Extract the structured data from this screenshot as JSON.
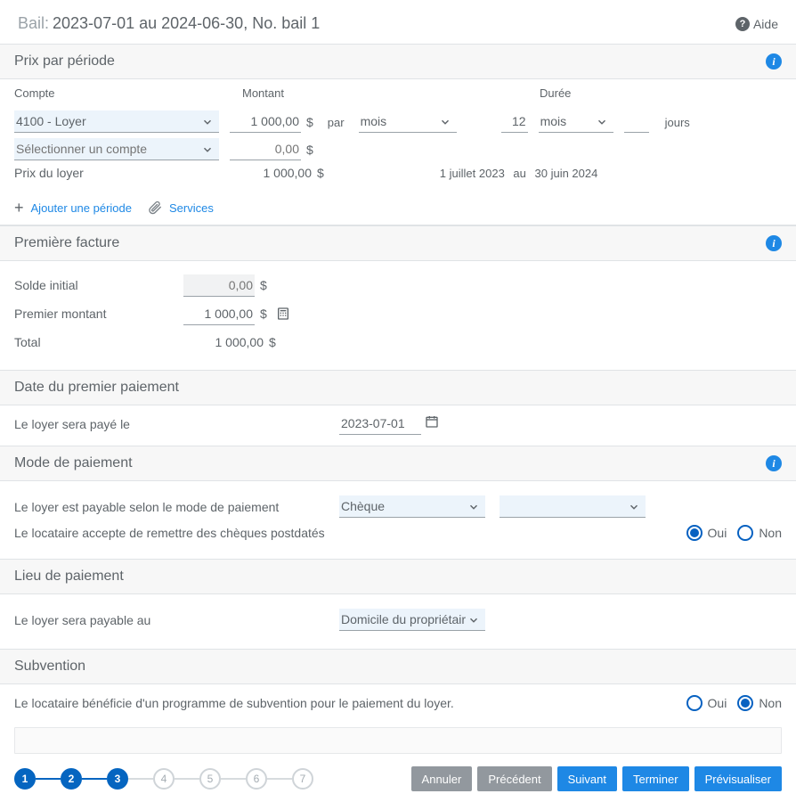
{
  "header": {
    "title_label": "Bail:",
    "title_value": "2023-07-01 au 2024-06-30, No. bail 1",
    "help_label": "Aide"
  },
  "prix": {
    "title": "Prix par période",
    "labels": {
      "compte": "Compte",
      "montant": "Montant",
      "duree": "Durée",
      "par": "par",
      "jours": "jours"
    },
    "account1": "4100 - Loyer",
    "amount1": "1 000,00",
    "unit": "mois",
    "duree_value": "12",
    "duree_unit": "mois",
    "account2_placeholder": "Sélectionner un compte",
    "amount2_placeholder": "0,00",
    "currency": "$",
    "summary_label": "Prix du loyer",
    "summary_amount": "1 000,00",
    "date_from": "1 juillet 2023",
    "date_sep": "au",
    "date_to": "30 juin 2024",
    "add_period": "Ajouter une période",
    "services": "Services"
  },
  "premiere": {
    "title": "Première facture",
    "solde_label": "Solde initial",
    "solde_placeholder": "0,00",
    "premier_label": "Premier montant",
    "premier_value": "1 000,00",
    "total_label": "Total",
    "total_value": "1 000,00",
    "currency": "$"
  },
  "date_premier": {
    "title": "Date du premier paiement",
    "label": "Le loyer sera payé le",
    "value": "2023-07-01"
  },
  "mode": {
    "title": "Mode de paiement",
    "label1": "Le loyer est payable selon le mode de paiement",
    "value1": "Chèque",
    "value2": "",
    "label2": "Le locataire accepte de remettre des chèques postdatés",
    "oui": "Oui",
    "non": "Non",
    "postdated_selected": "oui"
  },
  "lieu": {
    "title": "Lieu de paiement",
    "label": "Le loyer sera payable au",
    "value": "Domicile du propriétair"
  },
  "subvention": {
    "title": "Subvention",
    "label": "Le locataire bénéficie d'un programme de subvention pour le paiement du loyer.",
    "oui": "Oui",
    "non": "Non",
    "selected": "non"
  },
  "footer": {
    "steps": [
      "1",
      "2",
      "3",
      "4",
      "5",
      "6",
      "7"
    ],
    "current_step": 3,
    "annuler": "Annuler",
    "precedent": "Précédent",
    "suivant": "Suivant",
    "terminer": "Terminer",
    "previsualiser": "Prévisualiser"
  },
  "colors": {
    "accent": "#1e88e5",
    "primary_dark": "#0565c0",
    "grey_btn": "#92989e",
    "text": "#5e6469"
  }
}
